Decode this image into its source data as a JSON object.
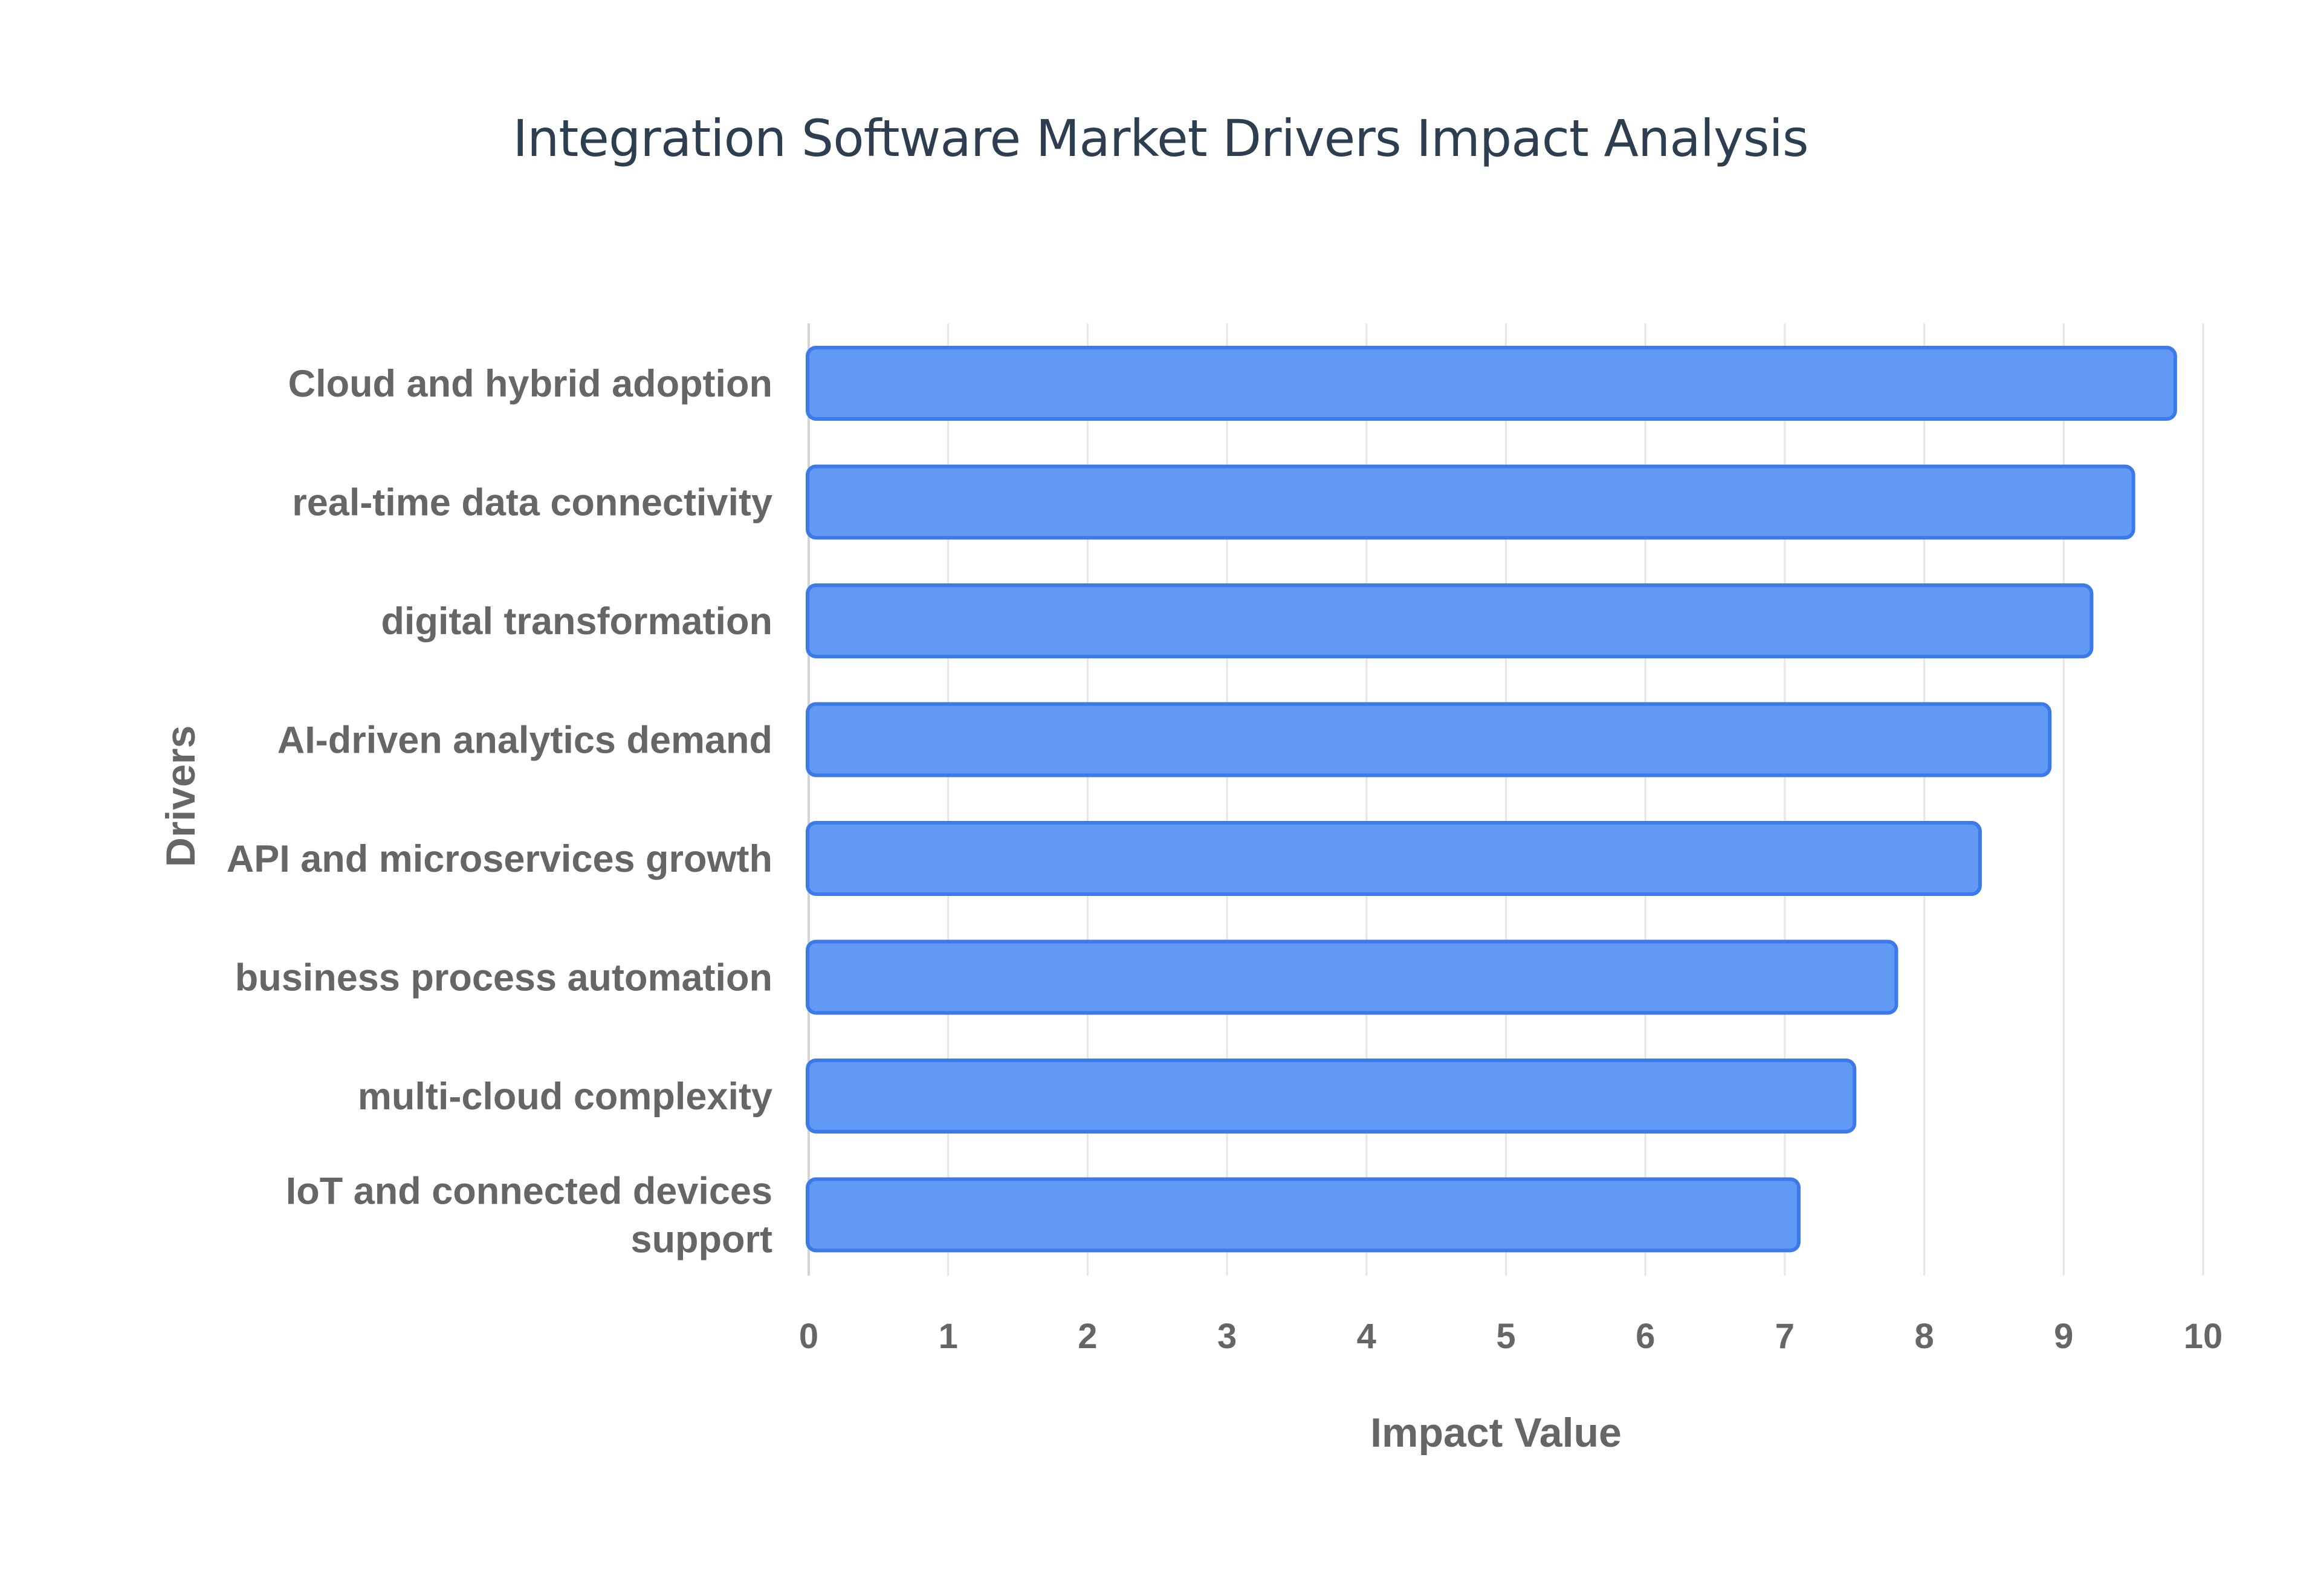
{
  "chart_data": {
    "type": "bar",
    "orientation": "horizontal",
    "title": "Integration Software Market Drivers Impact Analysis",
    "xlabel": "Impact Value",
    "ylabel": "Drivers",
    "categories": [
      "Cloud and hybrid adoption",
      "real-time data connectivity",
      "digital transformation",
      "AI-driven analytics demand",
      "API and microservices growth",
      "business process automation",
      "multi-cloud complexity",
      "IoT and connected devices support"
    ],
    "values": [
      9.8,
      9.5,
      9.2,
      8.9,
      8.4,
      7.8,
      7.5,
      7.1
    ],
    "xlim": [
      0,
      10
    ],
    "xticks": [
      "0",
      "1",
      "2",
      "3",
      "4",
      "5",
      "6",
      "7",
      "8",
      "9",
      "10"
    ],
    "grid": true,
    "legend": "none",
    "colors": {
      "bar_fill": "#6199f5",
      "bar_stroke": "#3b7ae8",
      "title": "#2c3e50",
      "labels": "#666666",
      "grid": "#e6e6e6"
    }
  }
}
